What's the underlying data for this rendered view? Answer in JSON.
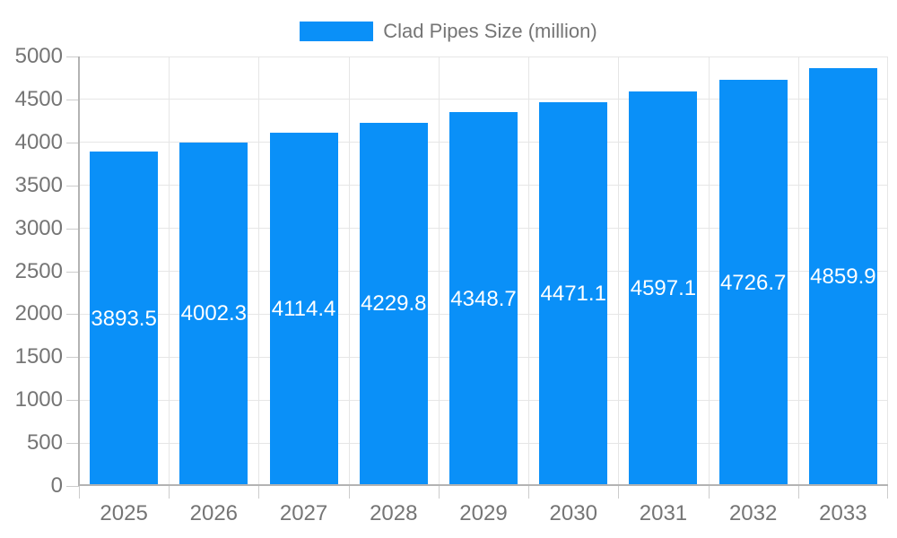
{
  "page": {
    "background_color": "#ffffff"
  },
  "legend": {
    "label": "Clad Pipes Size (million)",
    "swatch_color": "#0a90f8",
    "position": "top"
  },
  "chart_data": {
    "type": "bar",
    "title": "Clad Pipes Size (million)",
    "categories": [
      "2025",
      "2026",
      "2027",
      "2028",
      "2029",
      "2030",
      "2031",
      "2032",
      "2033"
    ],
    "values": [
      3893.5,
      4002.3,
      4114.4,
      4229.8,
      4348.7,
      4471.1,
      4597.1,
      4726.7,
      4859.9
    ],
    "value_labels": [
      "3893.5",
      "4002.3",
      "4114.4",
      "4229.8",
      "4348.7",
      "4471.1",
      "4597.1",
      "4726.7",
      "4859.9"
    ],
    "xlabel": "",
    "ylabel": "",
    "ylim": [
      0,
      5000
    ],
    "ytick_step": 500,
    "yticks": [
      0,
      500,
      1000,
      1500,
      2000,
      2500,
      3000,
      3500,
      4000,
      4500,
      5000
    ],
    "grid": true,
    "legend_position": "top",
    "bar_color": "#0a90f8",
    "value_label_color": "#ffffff",
    "axis_text_color": "#757575",
    "grid_color": "#e6e6e6",
    "axis_line_color": "#b3b3b3",
    "tick_color": "#cccccc"
  }
}
